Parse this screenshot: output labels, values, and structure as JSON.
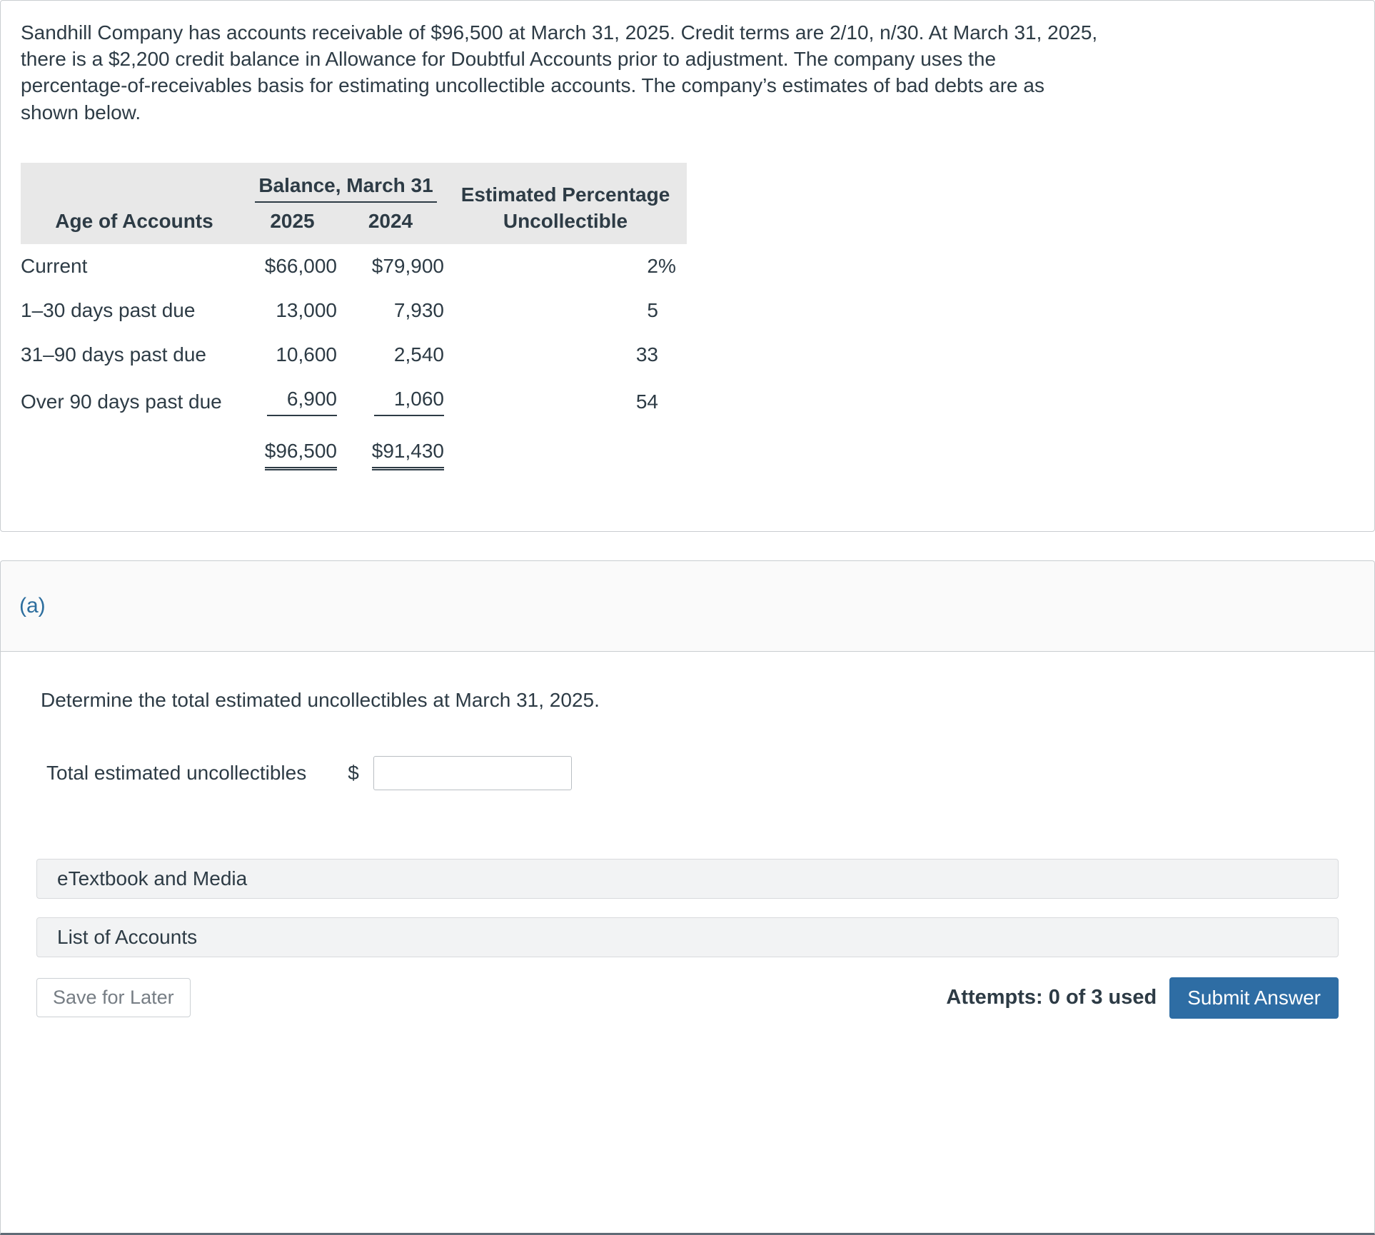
{
  "colors": {
    "accent_blue": "#2d6e9e",
    "submit_blue": "#2e6da4",
    "table_header_bg": "#e8e8e8"
  },
  "problem": {
    "text": "Sandhill Company has accounts receivable of $96,500 at March 31, 2025. Credit terms are 2/10, n/30. At March 31, 2025, there is a $2,200 credit balance in Allowance for Doubtful Accounts prior to adjustment. The company uses the percentage-of-receivables basis for estimating uncollectible accounts. The company’s estimates of bad debts are as shown below."
  },
  "table": {
    "header": {
      "balance_group": "Balance, March 31",
      "age": "Age of Accounts",
      "col_2025": "2025",
      "col_2024": "2024",
      "estimated_pct": "Estimated Percentage Uncollectible"
    },
    "rows": [
      {
        "age": "Current",
        "y2025": "$66,000",
        "y2024": "$79,900",
        "pct": "2",
        "pct_symbol": "%"
      },
      {
        "age": "1–30 days past due",
        "y2025": "13,000",
        "y2024": "7,930",
        "pct": "5"
      },
      {
        "age": "31–90 days past due",
        "y2025": "10,600",
        "y2024": "2,540",
        "pct": "33"
      },
      {
        "age": "Over 90 days past due",
        "y2025": "6,900",
        "y2024": "1,060",
        "pct": "54"
      }
    ],
    "totals": {
      "y2025": "$96,500",
      "y2024": "$91,430"
    }
  },
  "part_a": {
    "label": "(a)",
    "question": "Determine the total estimated uncollectibles at March 31, 2025.",
    "answer_label": "Total estimated uncollectibles",
    "currency_symbol": "$",
    "answer_value": "",
    "etextbook_button": "eTextbook and Media",
    "list_accounts_button": "List of Accounts",
    "save_button": "Save for Later",
    "attempts_text": "Attempts: 0 of 3 used",
    "submit_button": "Submit Answer"
  }
}
